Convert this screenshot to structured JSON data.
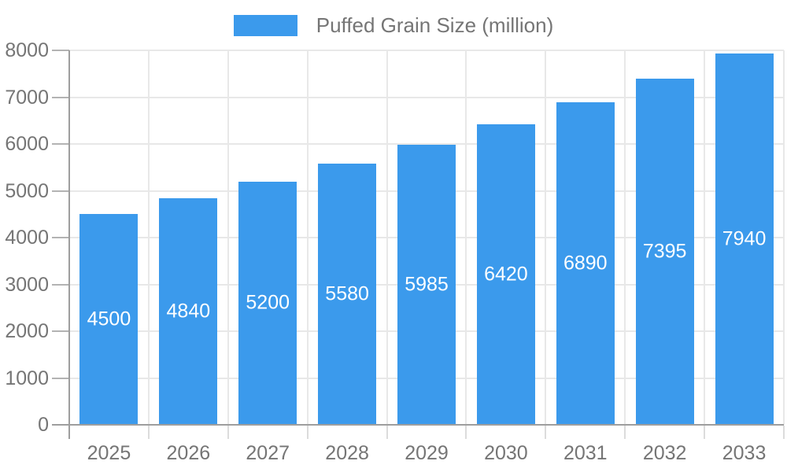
{
  "legend": {
    "label": "Puffed Grain Size (million)"
  },
  "chart_data": {
    "type": "bar",
    "title": "Puffed Grain Size (million)",
    "categories": [
      "2025",
      "2026",
      "2027",
      "2028",
      "2029",
      "2030",
      "2031",
      "2032",
      "2033"
    ],
    "series": [
      {
        "name": "Puffed Grain Size (million)",
        "values": [
          4500,
          4840,
          5200,
          5580,
          5985,
          6420,
          6890,
          7395,
          7940
        ]
      }
    ],
    "values": [
      4500,
      4840,
      5200,
      5580,
      5985,
      6420,
      6890,
      7395,
      7940
    ],
    "bar_value_labels": [
      "4500",
      "4840",
      "5200",
      "5580",
      "5985",
      "6420",
      "6890",
      "7395",
      "7940"
    ],
    "xlabel": "",
    "ylabel": "",
    "ylim": [
      0,
      8000
    ],
    "yticks": [
      0,
      1000,
      2000,
      3000,
      4000,
      5000,
      6000,
      7000,
      8000
    ],
    "grid": true,
    "legend_position": "top",
    "colors": {
      "bar": "#3b9aec",
      "bar_label_text": "#ffffff",
      "axis_text": "#757575",
      "gridline": "#e8e8e8",
      "axis_line": "#9e9e9e",
      "background": "#ffffff"
    }
  }
}
